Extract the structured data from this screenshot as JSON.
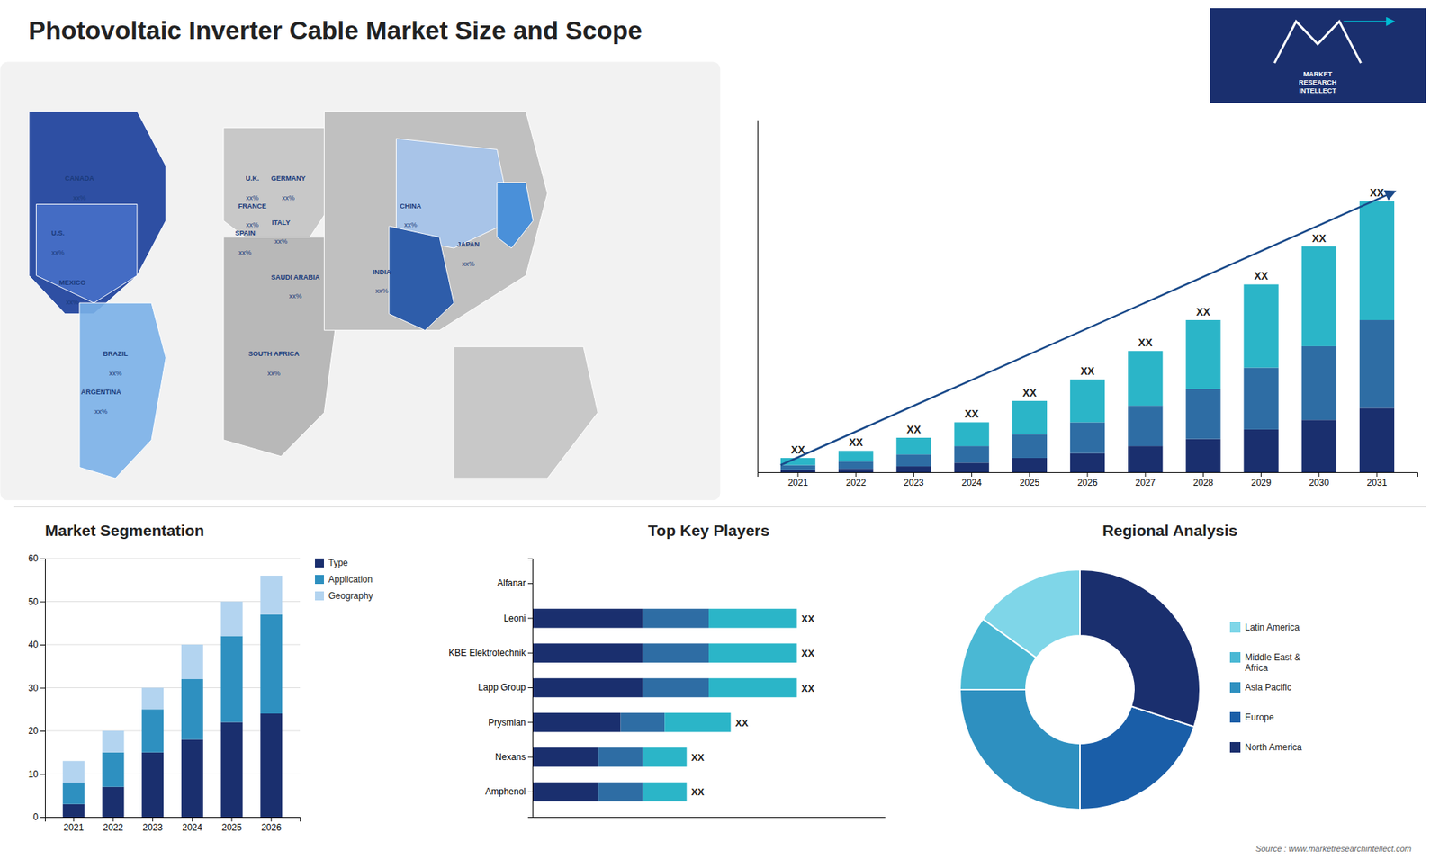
{
  "chart_data": [
    {
      "type": "map",
      "title": "Photovoltaic Inverter Cable Market Size and Scope",
      "annotations": [
        "CANADA",
        "xx%",
        "U.S.",
        "xx%",
        "MEXICO",
        "xx%",
        "BRAZIL",
        "xx%",
        "ARGENTINA",
        "xx%",
        "U.K.",
        "xx%",
        "FRANCE",
        "xx%",
        "SPAIN",
        "xx%",
        "GERMANY",
        "xx%",
        "ITALY",
        "xx%",
        "SAUDI ARABIA",
        "xx%",
        "SOUTH AFRICA",
        "xx%",
        "CHINA",
        "xx%",
        "JAPAN",
        "xx%",
        "INDIA",
        "xx%",
        "Source : www.marketresearchintellect.com",
        "MARKET\nRESEARCH\nINTELLECT"
      ]
    },
    {
      "type": "bar",
      "categories": [
        "2021",
        "2022",
        "2023",
        "2024",
        "2025",
        "2026",
        "2027",
        "2028",
        "2029",
        "2030",
        "2031"
      ],
      "series": [
        {
          "color": "#1a2f6e",
          "values": [
            1,
            1.5,
            2.5,
            4,
            6,
            8,
            11,
            14,
            18,
            22,
            27
          ]
        },
        {
          "color": "#2e6da4",
          "values": [
            2,
            3,
            5,
            7,
            10,
            13,
            17,
            21,
            26,
            31,
            37
          ]
        },
        {
          "color": "#2bb5c8",
          "values": [
            3,
            4.5,
            7,
            10,
            14,
            18,
            23,
            29,
            35,
            42,
            50
          ]
        }
      ],
      "stacked": true,
      "ylim": [
        0,
        148.2
      ],
      "tick_labels": "x",
      "annotations": [
        "XX",
        "XX",
        "XX",
        "XX",
        "XX",
        "XX",
        "XX",
        "XX",
        "XX",
        "XX",
        "XX"
      ]
    },
    {
      "type": "bar",
      "title": "Market Segmentation",
      "categories": [
        "2021",
        "2022",
        "2023",
        "2024",
        "2025",
        "2026"
      ],
      "series": [
        {
          "name": "Type",
          "color": "#1a2f6e",
          "values": [
            3,
            7,
            15,
            18,
            22,
            24
          ]
        },
        {
          "name": "Application",
          "color": "#2e90c0",
          "values": [
            5,
            8,
            10,
            14,
            20,
            23
          ]
        },
        {
          "name": "Geography",
          "color": "#b3d4f0",
          "values": [
            5,
            5,
            5,
            8,
            8,
            9
          ]
        }
      ],
      "stacked": true,
      "ylim": [
        0,
        60
      ],
      "yticks": [
        0,
        10,
        20,
        30,
        40,
        50,
        60
      ],
      "grid": true,
      "legend": "right"
    },
    {
      "type": "bar",
      "title": "Top Key Players",
      "orientation": "horizontal",
      "stacked": true,
      "categories": [
        "Alfanar",
        "Leoni",
        "KBE Elektrotechnik",
        "Lapp Group",
        "Prysmian",
        "Nexans",
        "Amphenol"
      ],
      "series": [
        {
          "color": "#1a2f6e",
          "values": [
            0,
            5,
            5,
            5,
            4,
            3,
            3
          ]
        },
        {
          "color": "#2e6da4",
          "values": [
            0,
            3,
            3,
            3,
            2,
            2,
            2
          ]
        },
        {
          "color": "#2bb5c8",
          "values": [
            0,
            4,
            4,
            4,
            3,
            2,
            2
          ]
        }
      ],
      "xlim": [
        0,
        16
      ],
      "tick_labels": "y",
      "annotations": [
        "XX",
        "XX",
        "XX",
        "XX",
        "XX",
        "XX"
      ]
    },
    {
      "type": "pie",
      "title": "Regional Analysis",
      "categories": [
        "Latin America",
        "Middle East &\nAfrica",
        "Asia Pacific",
        "Europe",
        "North America"
      ],
      "values": [
        15,
        10,
        25,
        20,
        30
      ],
      "colors": [
        "#7fd6e8",
        "#4ab8d4",
        "#2e90c0",
        "#1a5ea8",
        "#1a2f6e"
      ],
      "legend": "right"
    }
  ]
}
